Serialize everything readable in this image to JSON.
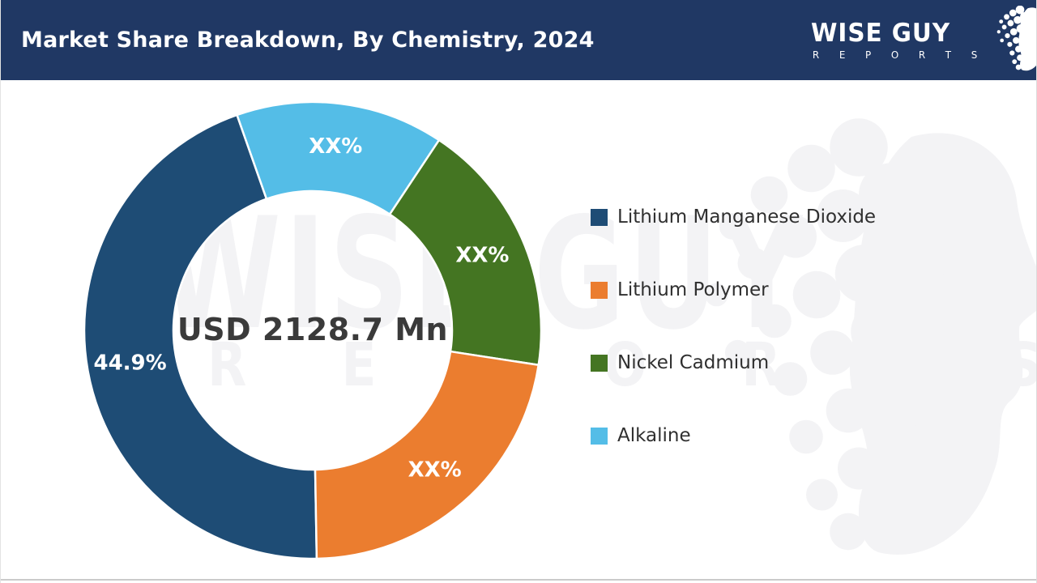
{
  "header": {
    "title": "Market Share Breakdown, By Chemistry, 2024",
    "bg_color": "#203864",
    "logo": {
      "line1": "WISE GUY",
      "line2": "R E P O R T S"
    }
  },
  "watermark": {
    "line1": "WISE GUY",
    "line2": "R E P O R T S"
  },
  "chart_data": {
    "type": "pie",
    "subtype": "donut",
    "title": "Market Share Breakdown, By Chemistry, 2024",
    "center_label": "USD 2128.7 Mn",
    "start_angle_deg": 271,
    "direction": "clockwise",
    "outer_radius": 282,
    "inner_radius": 172,
    "label_radius": 229,
    "segments": [
      {
        "name": "Lithium Manganese Dioxide",
        "display_label": "44.9%",
        "value_pct": 44.9,
        "color": "#1E4C75"
      },
      {
        "name": "Alkaline",
        "display_label": "XX%",
        "value_pct": 14.7,
        "color": "#54BDE7"
      },
      {
        "name": "Nickel Cadmium",
        "display_label": "XX%",
        "value_pct": 18.1,
        "color": "#447522"
      },
      {
        "name": "Lithium Polymer",
        "display_label": "XX%",
        "value_pct": 22.3,
        "color": "#EB7D2F"
      }
    ],
    "legend_position": "right",
    "grid": false
  },
  "legend": {
    "items": [
      {
        "label": "Lithium Manganese Dioxide",
        "color": "#1E4C75"
      },
      {
        "label": "Lithium Polymer",
        "color": "#EB7D2F"
      },
      {
        "label": "Nickel Cadmium",
        "color": "#447522"
      },
      {
        "label": "Alkaline",
        "color": "#54BDE7"
      }
    ]
  },
  "colors": {
    "header_bg": "#203864",
    "center_text": "#3a3a3a",
    "segment_gap": "#ffffff",
    "watermark": "#f3f3f5"
  }
}
